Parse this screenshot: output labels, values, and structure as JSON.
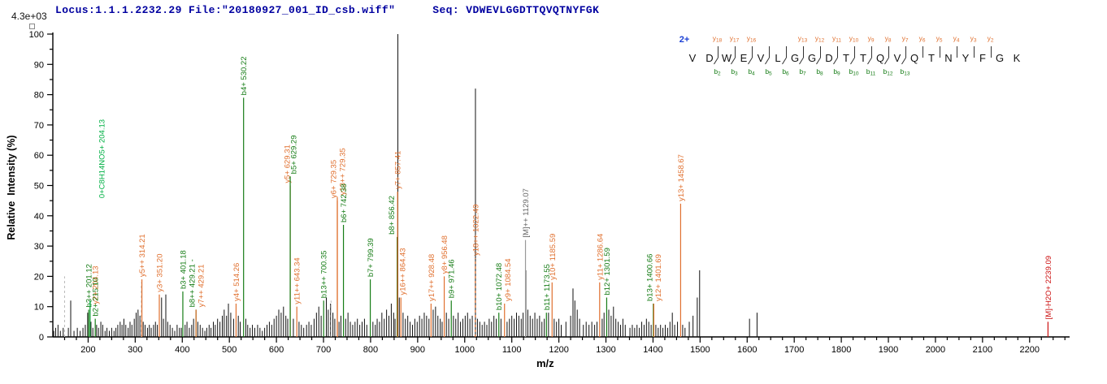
{
  "header": {
    "locus_file": "Locus:1.1.1.2232.29 File:\"20180927_001_ID_csb.wiff\"",
    "seq_label": "Seq:",
    "sequence": "VDWEVLGGDTTQVQTNYFGK",
    "max_intensity": "4.3e+03"
  },
  "axes": {
    "xlabel": "m/z",
    "ylabel": "Relative  Intensity (%)",
    "x_range": [
      125,
      2285
    ],
    "y_range": [
      0,
      100
    ],
    "x_major_ticks": [
      200,
      300,
      400,
      500,
      600,
      700,
      800,
      900,
      1000,
      1100,
      1200,
      1300,
      1400,
      1500,
      1600,
      1700,
      1800,
      1900,
      2000,
      2100,
      2200
    ],
    "x_minor_step": 25,
    "y_major_ticks": [
      0,
      10,
      20,
      30,
      40,
      50,
      60,
      70,
      80,
      90,
      100
    ],
    "y_minor_step": 5
  },
  "colors": {
    "b_ion": "#177d17",
    "y_ion": "#e0702f",
    "special_ion": "#00b044",
    "precursor_line": "#999999",
    "precursor_text": "#666666",
    "precursor_loss": "#cc1111",
    "peak": "#111111",
    "marker": "#bbbbbb",
    "axis": "#000000",
    "header_text": "#0000a0",
    "charge_label": "#1a3fd4",
    "residue_text": "#111111"
  },
  "peptide_diagram": {
    "charge": "2+",
    "residues": [
      "V",
      "D",
      "W",
      "E",
      "V",
      "L",
      "G",
      "G",
      "D",
      "T",
      "T",
      "Q",
      "V",
      "Q",
      "T",
      "N",
      "Y",
      "F",
      "G",
      "K"
    ],
    "divider_gaps": [
      2,
      3,
      4,
      5,
      6,
      7,
      8,
      9,
      10,
      11,
      12,
      13,
      14,
      15,
      16,
      17,
      18
    ],
    "y_ions": [
      {
        "gap": 2,
        "label": "y",
        "num": "18"
      },
      {
        "gap": 3,
        "label": "y",
        "num": "17"
      },
      {
        "gap": 4,
        "label": "y",
        "num": "16"
      },
      {
        "gap": 7,
        "label": "y",
        "num": "13"
      },
      {
        "gap": 8,
        "label": "y",
        "num": "12"
      },
      {
        "gap": 9,
        "label": "y",
        "num": "11"
      },
      {
        "gap": 10,
        "label": "y",
        "num": "10"
      },
      {
        "gap": 11,
        "label": "y",
        "num": "9"
      },
      {
        "gap": 12,
        "label": "y",
        "num": "8"
      },
      {
        "gap": 13,
        "label": "y",
        "num": "7"
      },
      {
        "gap": 14,
        "label": "y",
        "num": "6"
      },
      {
        "gap": 15,
        "label": "y",
        "num": "5"
      },
      {
        "gap": 16,
        "label": "y",
        "num": "4"
      },
      {
        "gap": 17,
        "label": "y",
        "num": "3"
      },
      {
        "gap": 18,
        "label": "y",
        "num": "2"
      }
    ],
    "b_ions": [
      {
        "gap": 2,
        "label": "b",
        "num": "2"
      },
      {
        "gap": 3,
        "label": "b",
        "num": "3"
      },
      {
        "gap": 4,
        "label": "b",
        "num": "4"
      },
      {
        "gap": 5,
        "label": "b",
        "num": "5"
      },
      {
        "gap": 6,
        "label": "b",
        "num": "6"
      },
      {
        "gap": 7,
        "label": "b",
        "num": "7"
      },
      {
        "gap": 8,
        "label": "b",
        "num": "8"
      },
      {
        "gap": 9,
        "label": "b",
        "num": "9"
      },
      {
        "gap": 10,
        "label": "b",
        "num": "10"
      },
      {
        "gap": 11,
        "label": "b",
        "num": "11"
      },
      {
        "gap": 12,
        "label": "b",
        "num": "12"
      },
      {
        "gap": 13,
        "label": "b",
        "num": "13"
      }
    ]
  },
  "chart_data": {
    "type": "bar",
    "subtype": "ms2-fragmentation-spectrum",
    "xlabel": "m/z",
    "ylabel": "Relative  Intensity (%)",
    "xlim": [
      125,
      2285
    ],
    "ylim": [
      0,
      100
    ],
    "annotated_peaks": [
      {
        "mz": 201.12,
        "pct": 9,
        "series": "b",
        "label": "b3++ 201.12"
      },
      {
        "mz": 204.13,
        "pct": 10,
        "series": "y",
        "label": "y2+ 204.13",
        "dx": 6
      },
      {
        "mz": 204.13,
        "pct": 12,
        "series": "special",
        "label": "0+C8H14NO5+ 204.13",
        "dx": 14,
        "labelPct": 45
      },
      {
        "mz": 215.1,
        "pct": 6,
        "series": "b",
        "label": "b2+ 215.10"
      },
      {
        "mz": 314.21,
        "pct": 19,
        "series": "y",
        "label": "y5++ 314.21"
      },
      {
        "mz": 351.2,
        "pct": 14,
        "series": "y",
        "label": "y3+ 351.20"
      },
      {
        "mz": 401.18,
        "pct": 15,
        "series": "b",
        "label": "b3+ 401.18"
      },
      {
        "mz": 429.21,
        "pct": 9,
        "series": "b",
        "label": "b8++ 429.21 -",
        "dx": -5
      },
      {
        "mz": 429.21,
        "pct": 9,
        "series": "y",
        "label": "y7++ 429.21",
        "dx": 6
      },
      {
        "mz": 514.26,
        "pct": 11,
        "series": "y",
        "label": "y4+ 514.26"
      },
      {
        "mz": 530.22,
        "pct": 79,
        "series": "b",
        "label": "b4+ 530.22"
      },
      {
        "mz": 629.31,
        "pct": 50,
        "series": "y",
        "label": "y5+ 629.31",
        "dx": -4
      },
      {
        "mz": 629.29,
        "pct": 53,
        "series": "b",
        "label": "b5+ 629.29",
        "dx": 4
      },
      {
        "mz": 643.34,
        "pct": 10,
        "series": "y",
        "label": "y11++ 643.34"
      },
      {
        "mz": 700.35,
        "pct": 12,
        "series": "b",
        "label": "b13++ 700.35"
      },
      {
        "mz": 729.35,
        "pct": 45,
        "series": "y",
        "label": "y6+ 729.35",
        "dx": -5
      },
      {
        "mz": 729.35,
        "pct": 46,
        "series": "y",
        "label": "y13++ 729.35",
        "dx": 6
      },
      {
        "mz": 742.38,
        "pct": 37,
        "series": "b",
        "label": "b6+ 742.38"
      },
      {
        "mz": 799.39,
        "pct": 19,
        "series": "b",
        "label": "b7+ 799.39"
      },
      {
        "mz": 856.42,
        "pct": 33,
        "series": "b",
        "label": "b8+ 856.42",
        "dx": -7
      },
      {
        "mz": 857.41,
        "pct": 48,
        "series": "y",
        "label": "y7+ 857.41"
      },
      {
        "mz": 864.43,
        "pct": 13,
        "series": "y",
        "label": "y16++ 864.43",
        "dx": 2
      },
      {
        "mz": 928.48,
        "pct": 11,
        "series": "y",
        "label": "y17++ 928.48"
      },
      {
        "mz": 956.48,
        "pct": 20,
        "series": "y",
        "label": "y8+ 956.48"
      },
      {
        "mz": 971.46,
        "pct": 12,
        "series": "b",
        "label": "b9+ 971.46"
      },
      {
        "mz": 1022.49,
        "pct": 26,
        "series": "y",
        "label": "y18++ 1022.49",
        "dash": true
      },
      {
        "mz": 1072.48,
        "pct": 8,
        "series": "b",
        "label": "b10+ 1072.48"
      },
      {
        "mz": 1084.54,
        "pct": 11,
        "series": "y",
        "label": "y9+ 1084.54",
        "dx": 4
      },
      {
        "mz": 1129.07,
        "pct": 32,
        "series": "M",
        "label": "[M]++ 1129.07"
      },
      {
        "mz": 1173.55,
        "pct": 8,
        "series": "b",
        "label": "b11+ 1173.55"
      },
      {
        "mz": 1185.59,
        "pct": 18,
        "series": "y",
        "label": "y10+ 1185.59"
      },
      {
        "mz": 1286.64,
        "pct": 18,
        "series": "y",
        "label": "y11+ 1286.64"
      },
      {
        "mz": 1301.59,
        "pct": 13,
        "series": "b",
        "label": "b12+ 1301.59"
      },
      {
        "mz": 1400.66,
        "pct": 11,
        "series": "b",
        "label": "b13+ 1400.66",
        "dx": -5
      },
      {
        "mz": 1401.69,
        "pct": 11,
        "series": "y",
        "label": "y12+ 1401.69",
        "dx": 5
      },
      {
        "mz": 1458.67,
        "pct": 44,
        "series": "y",
        "label": "y13+ 1458.67"
      },
      {
        "mz": 2239.09,
        "pct": 5,
        "series": "MH2O",
        "label": "[M]-H2O+ 2239.09"
      }
    ],
    "marker_peaks": [
      [
        150,
        20
      ],
      [
        313,
        18
      ],
      [
        716,
        12
      ]
    ],
    "unannotated_peaks": [
      [
        127,
        2
      ],
      [
        131,
        3
      ],
      [
        136,
        4
      ],
      [
        141,
        2
      ],
      [
        147,
        3
      ],
      [
        158,
        3
      ],
      [
        163,
        12
      ],
      [
        170,
        2
      ],
      [
        177,
        3
      ],
      [
        183,
        2
      ],
      [
        189,
        3
      ],
      [
        194,
        4
      ],
      [
        199,
        8
      ],
      [
        206,
        5
      ],
      [
        210,
        3
      ],
      [
        218,
        4
      ],
      [
        222,
        3
      ],
      [
        227,
        5
      ],
      [
        231,
        4
      ],
      [
        236,
        2
      ],
      [
        240,
        3
      ],
      [
        245,
        2
      ],
      [
        250,
        3
      ],
      [
        255,
        2
      ],
      [
        259,
        3
      ],
      [
        263,
        4
      ],
      [
        268,
        5
      ],
      [
        272,
        4
      ],
      [
        276,
        6
      ],
      [
        280,
        4
      ],
      [
        285,
        3
      ],
      [
        289,
        5
      ],
      [
        293,
        4
      ],
      [
        298,
        6
      ],
      [
        302,
        8
      ],
      [
        306,
        9
      ],
      [
        310,
        7
      ],
      [
        317,
        5
      ],
      [
        321,
        4
      ],
      [
        326,
        3
      ],
      [
        330,
        4
      ],
      [
        334,
        3
      ],
      [
        339,
        4
      ],
      [
        343,
        5
      ],
      [
        347,
        4
      ],
      [
        356,
        13
      ],
      [
        360,
        6
      ],
      [
        365,
        14
      ],
      [
        369,
        5
      ],
      [
        374,
        4
      ],
      [
        379,
        3
      ],
      [
        384,
        2
      ],
      [
        389,
        4
      ],
      [
        394,
        3
      ],
      [
        398,
        3
      ],
      [
        406,
        4
      ],
      [
        410,
        5
      ],
      [
        415,
        3
      ],
      [
        420,
        4
      ],
      [
        424,
        6
      ],
      [
        433,
        5
      ],
      [
        438,
        4
      ],
      [
        443,
        3
      ],
      [
        448,
        2
      ],
      [
        452,
        3
      ],
      [
        457,
        4
      ],
      [
        461,
        3
      ],
      [
        466,
        5
      ],
      [
        470,
        4
      ],
      [
        475,
        6
      ],
      [
        480,
        5
      ],
      [
        485,
        7
      ],
      [
        489,
        9
      ],
      [
        494,
        7
      ],
      [
        498,
        11
      ],
      [
        503,
        8
      ],
      [
        509,
        6
      ],
      [
        519,
        7
      ],
      [
        523,
        5
      ],
      [
        535,
        6
      ],
      [
        539,
        4
      ],
      [
        544,
        3
      ],
      [
        549,
        4
      ],
      [
        554,
        3
      ],
      [
        560,
        4
      ],
      [
        565,
        3
      ],
      [
        570,
        2
      ],
      [
        575,
        3
      ],
      [
        580,
        4
      ],
      [
        585,
        5
      ],
      [
        590,
        4
      ],
      [
        595,
        6
      ],
      [
        600,
        7
      ],
      [
        605,
        9
      ],
      [
        610,
        8
      ],
      [
        615,
        10
      ],
      [
        620,
        7
      ],
      [
        624,
        6
      ],
      [
        636,
        6
      ],
      [
        648,
        5
      ],
      [
        653,
        4
      ],
      [
        658,
        3
      ],
      [
        664,
        4
      ],
      [
        669,
        5
      ],
      [
        674,
        4
      ],
      [
        680,
        6
      ],
      [
        685,
        8
      ],
      [
        690,
        10
      ],
      [
        695,
        7
      ],
      [
        706,
        13
      ],
      [
        710,
        9
      ],
      [
        715,
        11
      ],
      [
        720,
        8
      ],
      [
        724,
        6
      ],
      [
        733,
        5
      ],
      [
        737,
        7
      ],
      [
        747,
        6
      ],
      [
        752,
        8
      ],
      [
        757,
        5
      ],
      [
        762,
        4
      ],
      [
        767,
        5
      ],
      [
        772,
        6
      ],
      [
        777,
        4
      ],
      [
        782,
        5
      ],
      [
        787,
        6
      ],
      [
        792,
        4
      ],
      [
        805,
        5
      ],
      [
        810,
        4
      ],
      [
        814,
        6
      ],
      [
        819,
        5
      ],
      [
        824,
        8
      ],
      [
        829,
        6
      ],
      [
        834,
        9
      ],
      [
        839,
        7
      ],
      [
        844,
        11
      ],
      [
        849,
        8
      ],
      [
        852,
        6
      ],
      [
        858,
        100
      ],
      [
        861,
        13
      ],
      [
        869,
        8
      ],
      [
        874,
        6
      ],
      [
        879,
        7
      ],
      [
        884,
        5
      ],
      [
        889,
        4
      ],
      [
        894,
        6
      ],
      [
        899,
        5
      ],
      [
        904,
        7
      ],
      [
        909,
        6
      ],
      [
        914,
        8
      ],
      [
        919,
        7
      ],
      [
        924,
        6
      ],
      [
        933,
        9
      ],
      [
        938,
        10
      ],
      [
        943,
        7
      ],
      [
        948,
        6
      ],
      [
        952,
        5
      ],
      [
        961,
        8
      ],
      [
        966,
        6
      ],
      [
        976,
        7
      ],
      [
        981,
        6
      ],
      [
        986,
        8
      ],
      [
        991,
        5
      ],
      [
        996,
        6
      ],
      [
        1001,
        7
      ],
      [
        1006,
        8
      ],
      [
        1011,
        6
      ],
      [
        1016,
        7
      ],
      [
        1022.8,
        82
      ],
      [
        1027,
        6
      ],
      [
        1032,
        5
      ],
      [
        1037,
        4
      ],
      [
        1042,
        5
      ],
      [
        1047,
        4
      ],
      [
        1052,
        6
      ],
      [
        1057,
        5
      ],
      [
        1062,
        7
      ],
      [
        1067,
        6
      ],
      [
        1077,
        6
      ],
      [
        1090,
        5
      ],
      [
        1095,
        6
      ],
      [
        1100,
        7
      ],
      [
        1105,
        6
      ],
      [
        1110,
        8
      ],
      [
        1115,
        7
      ],
      [
        1120,
        6
      ],
      [
        1124,
        8
      ],
      [
        1129.8,
        22
      ],
      [
        1134,
        9
      ],
      [
        1139,
        7
      ],
      [
        1144,
        6
      ],
      [
        1149,
        8
      ],
      [
        1154,
        6
      ],
      [
        1159,
        7
      ],
      [
        1164,
        5
      ],
      [
        1169,
        6
      ],
      [
        1178,
        8
      ],
      [
        1190,
        6
      ],
      [
        1195,
        5
      ],
      [
        1200,
        6
      ],
      [
        1205,
        4
      ],
      [
        1215,
        5
      ],
      [
        1225,
        7
      ],
      [
        1230,
        16
      ],
      [
        1234,
        12
      ],
      [
        1239,
        9
      ],
      [
        1244,
        6
      ],
      [
        1252,
        4
      ],
      [
        1258,
        5
      ],
      [
        1264,
        4
      ],
      [
        1270,
        5
      ],
      [
        1276,
        4
      ],
      [
        1281,
        5
      ],
      [
        1292,
        6
      ],
      [
        1296,
        8
      ],
      [
        1306,
        9
      ],
      [
        1311,
        7
      ],
      [
        1316,
        10
      ],
      [
        1321,
        6
      ],
      [
        1326,
        5
      ],
      [
        1331,
        4
      ],
      [
        1336,
        6
      ],
      [
        1341,
        4
      ],
      [
        1351,
        3
      ],
      [
        1356,
        4
      ],
      [
        1361,
        3
      ],
      [
        1366,
        4
      ],
      [
        1371,
        3
      ],
      [
        1376,
        5
      ],
      [
        1381,
        4
      ],
      [
        1386,
        6
      ],
      [
        1391,
        5
      ],
      [
        1396,
        4
      ],
      [
        1406,
        4
      ],
      [
        1411,
        3
      ],
      [
        1416,
        4
      ],
      [
        1421,
        3
      ],
      [
        1426,
        4
      ],
      [
        1431,
        3
      ],
      [
        1436,
        5
      ],
      [
        1441,
        8
      ],
      [
        1446,
        4
      ],
      [
        1452,
        5
      ],
      [
        1463,
        4
      ],
      [
        1468,
        3
      ],
      [
        1477,
        5
      ],
      [
        1485,
        7
      ],
      [
        1494,
        13
      ],
      [
        1499,
        22
      ],
      [
        1605,
        6
      ],
      [
        1621,
        8
      ]
    ]
  }
}
